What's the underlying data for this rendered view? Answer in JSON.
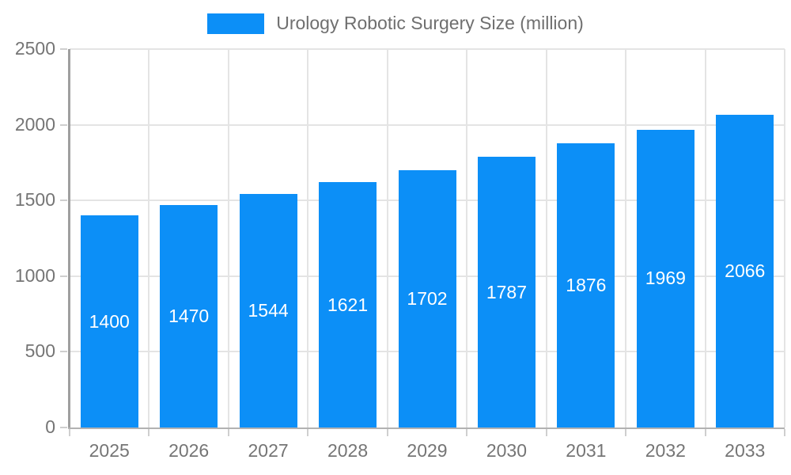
{
  "legend": {
    "label": "Urology Robotic Surgery Size (million)"
  },
  "colors": {
    "bar": "#0c8ff7",
    "grid_line": "#e4e4e4",
    "y_axis_line": "#9f9f9f",
    "x_axis_line": "#b2b2b2",
    "tick": "#cfcfcf",
    "axis_text": "#757575",
    "legend_text": "#6f6f6f",
    "value_text": "#ffffff",
    "background": "#ffffff"
  },
  "chart_data": {
    "type": "bar",
    "title": "",
    "xlabel": "",
    "ylabel": "",
    "categories": [
      "2025",
      "2026",
      "2027",
      "2028",
      "2029",
      "2030",
      "2031",
      "2032",
      "2033"
    ],
    "values": [
      1400,
      1470,
      1544,
      1621,
      1702,
      1787,
      1876,
      1969,
      2066
    ],
    "series_name": "Urology Robotic Surgery Size (million)",
    "ylim": [
      0,
      2500
    ],
    "yticks": [
      0,
      500,
      1000,
      1500,
      2000,
      2500
    ],
    "grid": true,
    "legend_position": "top-center",
    "bar_label_style": "white, centered inside bar"
  }
}
